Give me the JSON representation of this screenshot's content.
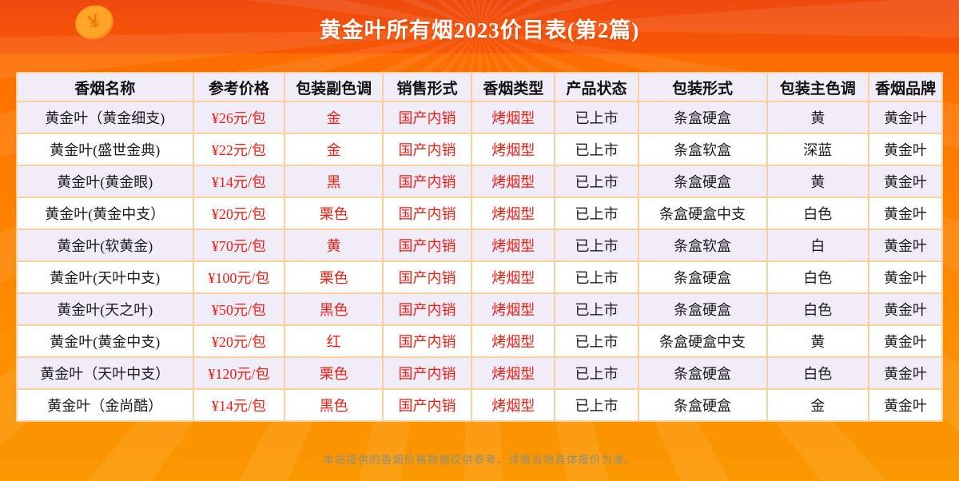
{
  "page": {
    "title": "黄金叶所有烟2023价目表(第2篇)",
    "coin_symbol": "¥",
    "footer_note": "本站提供的香烟价格数据仅供参考，详情当地具体报价为准。",
    "colors": {
      "banner_top": "#ee4a0e",
      "background_bottom": "#fb9800",
      "accent_red": "#eb1e14",
      "row_alt_lavender": "#f0edf8",
      "table_border": "#fbd09c"
    }
  },
  "table": {
    "columns": [
      {
        "key": "name",
        "label": "香烟名称",
        "style": "black"
      },
      {
        "key": "price",
        "label": "参考价格",
        "style": "red"
      },
      {
        "key": "sub_color",
        "label": "包装副色调",
        "style": "red"
      },
      {
        "key": "sales_form",
        "label": "销售形式",
        "style": "red"
      },
      {
        "key": "type",
        "label": "香烟类型",
        "style": "red"
      },
      {
        "key": "status",
        "label": "产品状态",
        "style": "black"
      },
      {
        "key": "pack_form",
        "label": "包装形式",
        "style": "black"
      },
      {
        "key": "main_color",
        "label": "包装主色调",
        "style": "black"
      },
      {
        "key": "brand",
        "label": "香烟品牌",
        "style": "black"
      }
    ],
    "rows": [
      {
        "name": "黄金叶（黄金细支)",
        "price": "¥26元/包",
        "sub_color": "金",
        "sales_form": "国产内销",
        "type": "烤烟型",
        "status": "已上市",
        "pack_form": "条盒硬盒",
        "main_color": "黄",
        "brand": "黄金叶"
      },
      {
        "name": "黄金叶(盛世金典)",
        "price": "¥22元/包",
        "sub_color": "金",
        "sales_form": "国产内销",
        "type": "烤烟型",
        "status": "已上市",
        "pack_form": "条盒软盒",
        "main_color": "深蓝",
        "brand": "黄金叶"
      },
      {
        "name": "黄金叶(黄金眼)",
        "price": "¥14元/包",
        "sub_color": "黑",
        "sales_form": "国产内销",
        "type": "烤烟型",
        "status": "已上市",
        "pack_form": "条盒硬盒",
        "main_color": "黄",
        "brand": "黄金叶"
      },
      {
        "name": "黄金叶(黄金中支）",
        "price": "¥20元/包",
        "sub_color": "栗色",
        "sales_form": "国产内销",
        "type": "烤烟型",
        "status": "已上市",
        "pack_form": "条盒硬盒中支",
        "main_color": "白色",
        "brand": "黄金叶"
      },
      {
        "name": "黄金叶(软黄金)",
        "price": "¥70元/包",
        "sub_color": "黄",
        "sales_form": "国产内销",
        "type": "烤烟型",
        "status": "已上市",
        "pack_form": "条盒软盒",
        "main_color": "白",
        "brand": "黄金叶"
      },
      {
        "name": "黄金叶(天叶中支)",
        "price": "¥100元/包",
        "sub_color": "栗色",
        "sales_form": "国产内销",
        "type": "烤烟型",
        "status": "已上市",
        "pack_form": "条盒硬盒",
        "main_color": "白色",
        "brand": "黄金叶"
      },
      {
        "name": "黄金叶(天之叶)",
        "price": "¥50元/包",
        "sub_color": "黑色",
        "sales_form": "国产内销",
        "type": "烤烟型",
        "status": "已上市",
        "pack_form": "条盒硬盒",
        "main_color": "白色",
        "brand": "黄金叶"
      },
      {
        "name": "黄金叶(黄金中支)",
        "price": "¥20元/包",
        "sub_color": "红",
        "sales_form": "国产内销",
        "type": "烤烟型",
        "status": "已上市",
        "pack_form": "条盒硬盒中支",
        "main_color": "黄",
        "brand": "黄金叶"
      },
      {
        "name": "黄金叶（天叶中支）",
        "price": "¥120元/包",
        "sub_color": "栗色",
        "sales_form": "国产内销",
        "type": "烤烟型",
        "status": "已上市",
        "pack_form": "条盒硬盒",
        "main_color": "白色",
        "brand": "黄金叶"
      },
      {
        "name": "黄金叶（金尚酷）",
        "price": "¥14元/包",
        "sub_color": "黑色",
        "sales_form": "国产内销",
        "type": "烤烟型",
        "status": "已上市",
        "pack_form": "条盒硬盒",
        "main_color": "金",
        "brand": "黄金叶"
      }
    ]
  }
}
